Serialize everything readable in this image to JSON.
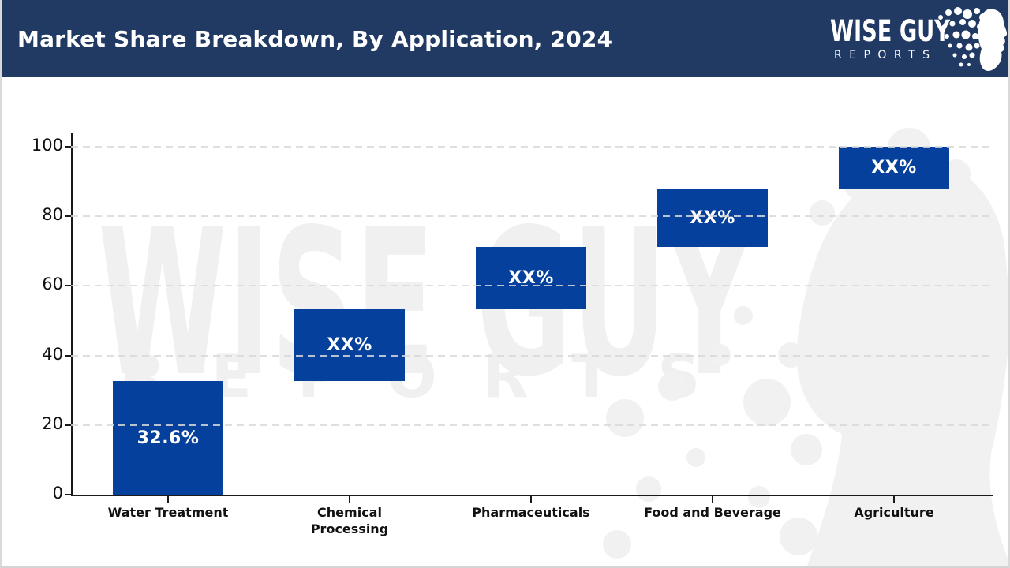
{
  "header": {
    "title": "Market Share Breakdown, By Application, 2024",
    "brand": {
      "name": "WISE GUY",
      "subname": "REPORTS"
    }
  },
  "watermark": {
    "line1": "WISE GUY",
    "line2": "REPORTS"
  },
  "chart_data": {
    "type": "bar",
    "subtype": "floating-segment-waterfall",
    "title": "Market Share Breakdown, By Application, 2024",
    "categories": [
      "Water Treatment",
      "Chemical\nProcessing",
      "Pharmaceuticals",
      "Food and Beverage",
      "Agriculture"
    ],
    "bars": [
      {
        "category": "Water Treatment",
        "start": 0,
        "end": 32.6,
        "label": "32.6%"
      },
      {
        "category": "Chemical Processing",
        "start": 32.6,
        "end": 53.2,
        "label": "XX%"
      },
      {
        "category": "Pharmaceuticals",
        "start": 53.2,
        "end": 71.3,
        "label": "XX%"
      },
      {
        "category": "Food and Beverage",
        "start": 71.3,
        "end": 87.8,
        "label": "XX%"
      },
      {
        "category": "Agriculture",
        "start": 87.8,
        "end": 100,
        "label": "XX%"
      }
    ],
    "xlabel": "",
    "ylabel": "",
    "ylim": [
      0,
      100
    ],
    "yticks": [
      0,
      20,
      40,
      60,
      80,
      100
    ],
    "grid": "horizontal-dashed",
    "legend": "none",
    "colors": {
      "bar": "#05419C",
      "grid": "#D9D9D9",
      "axis": "#1A1A1A",
      "bar_label": "#FFFFFF",
      "header_bg": "#213A63",
      "watermark": "#F0F0F0"
    }
  }
}
